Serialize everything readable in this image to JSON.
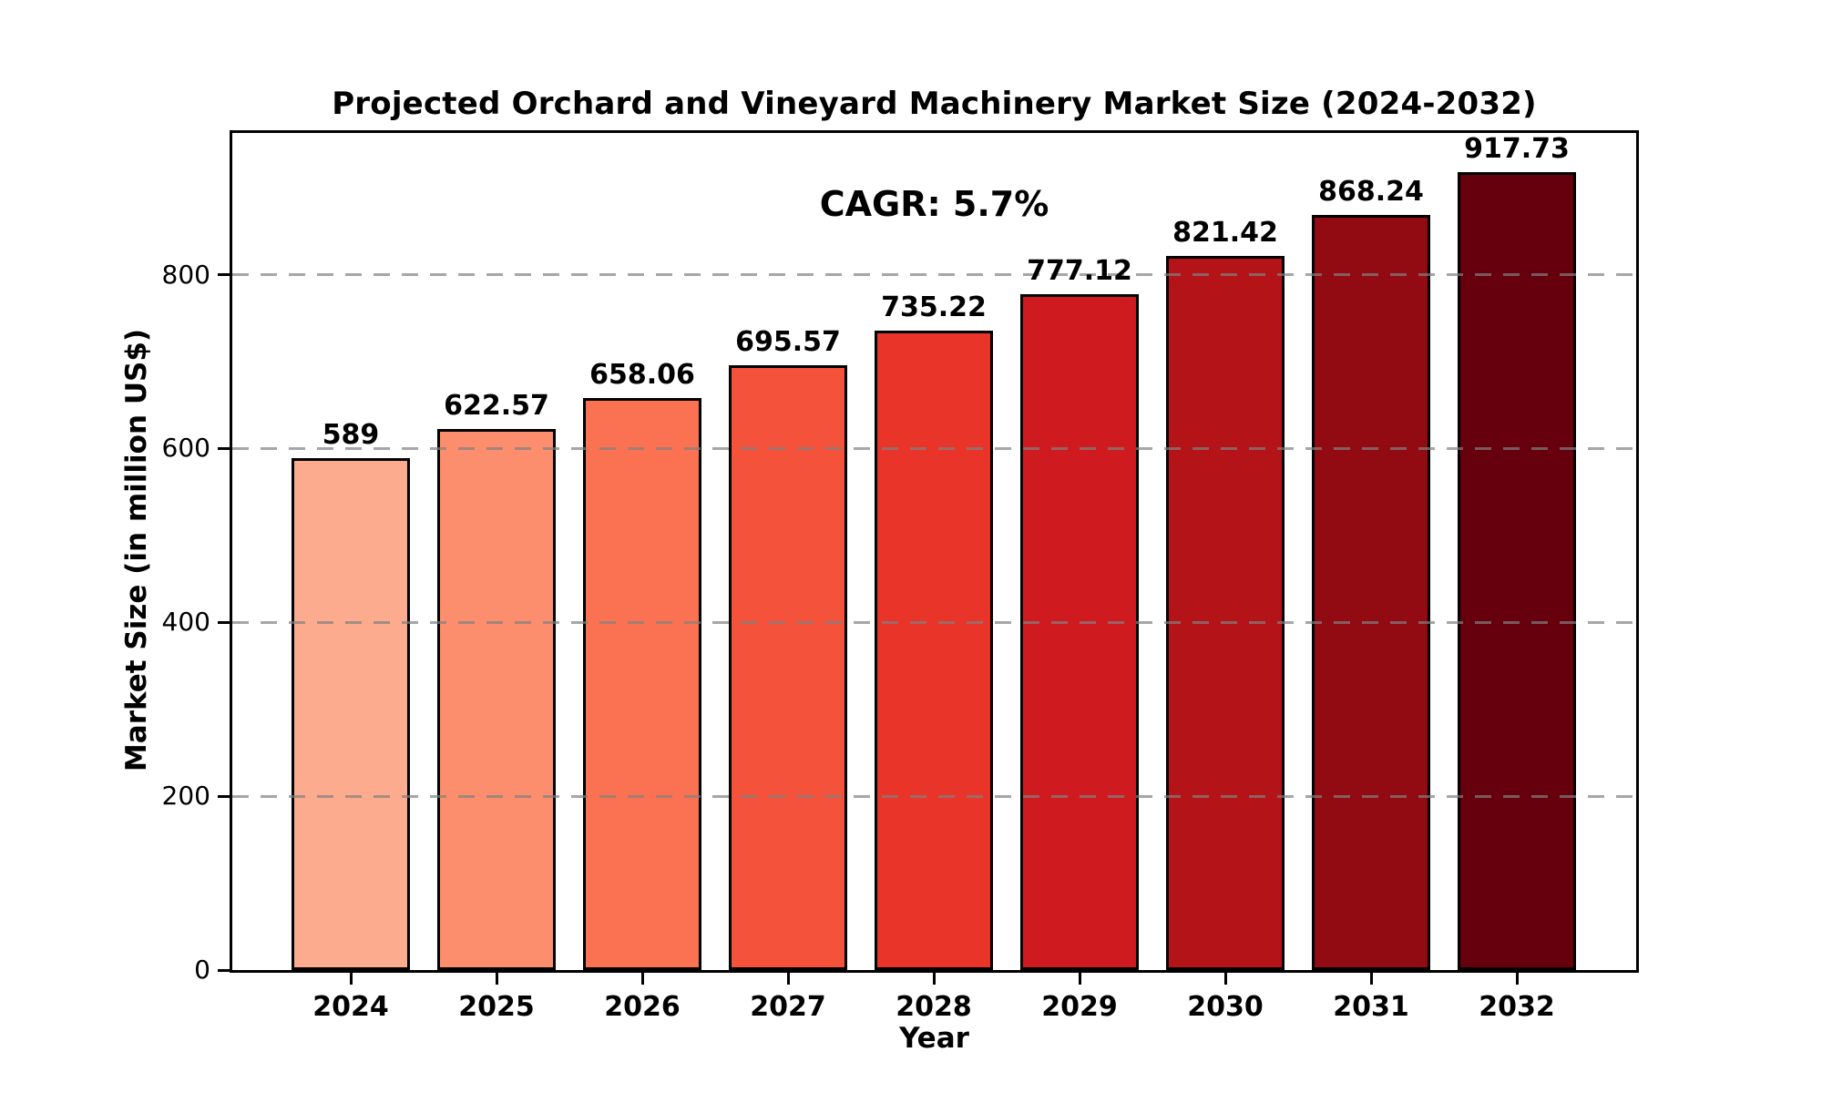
{
  "chart_data": {
    "type": "bar",
    "title": "Projected Orchard and Vineyard Machinery Market Size (2024-2032)",
    "annotation": "CAGR: 5.7%",
    "xlabel": "Year",
    "ylabel": "Market Size (in million US$)",
    "categories": [
      "2024",
      "2025",
      "2026",
      "2027",
      "2028",
      "2029",
      "2030",
      "2031",
      "2032"
    ],
    "values": [
      589,
      622.57,
      658.06,
      695.57,
      735.22,
      777.12,
      821.42,
      868.24,
      917.73
    ],
    "value_labels": [
      "589",
      "622.57",
      "658.06",
      "695.57",
      "735.22",
      "777.12",
      "821.42",
      "868.24",
      "917.73"
    ],
    "ylim": [
      0,
      963
    ],
    "yticks": [
      0,
      200,
      400,
      600,
      800
    ],
    "grid": {
      "axis": "y",
      "style": "dashed",
      "color_rgba": "rgba(128,128,128,0.7)"
    },
    "legend": "none",
    "bar_colors": [
      "#fcab8e",
      "#fc8e6e",
      "#fb7252",
      "#f5523b",
      "#e83429",
      "#cf1b1f",
      "#b41318",
      "#920b13",
      "#67000d"
    ],
    "bar_edge_color": "#000000",
    "background_color": "#ffffff",
    "text_color": "#000000"
  }
}
